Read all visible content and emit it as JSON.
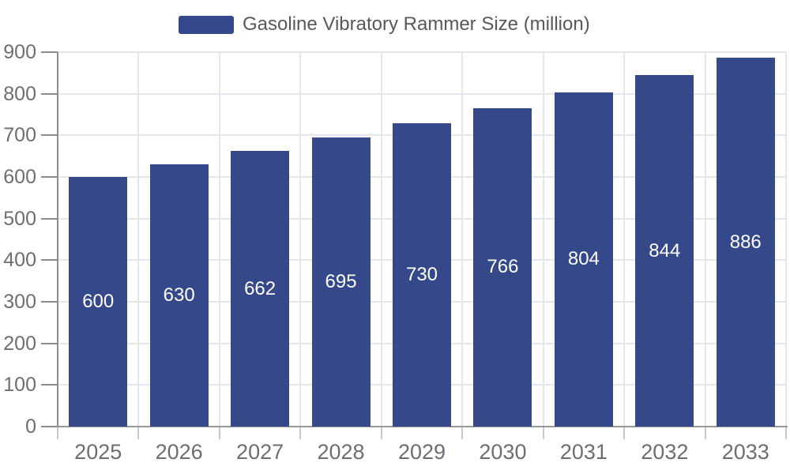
{
  "legend": {
    "label": "Gasoline Vibratory Rammer Size (million)",
    "swatch_color": "#35498a"
  },
  "colors": {
    "bar": "#35498a",
    "value_label": "#ffffff",
    "axis_label": "#6c6e73",
    "legend_text": "#56585c",
    "grid_line": "#e5e5ea",
    "axis_line": "#8b8c90",
    "x_axis_line": "#97989c",
    "x_tick": "#c6c8ce",
    "background": "#ffffff"
  },
  "chart_data": {
    "type": "bar",
    "title": "Gasoline Vibratory Rammer Size (million)",
    "categories": [
      "2025",
      "2026",
      "2027",
      "2028",
      "2029",
      "2030",
      "2031",
      "2032",
      "2033"
    ],
    "values": [
      600,
      630,
      662,
      695,
      730,
      766,
      804,
      844,
      886
    ],
    "series": [
      {
        "name": "Gasoline Vibratory Rammer Size (million)",
        "values": [
          600,
          630,
          662,
          695,
          730,
          766,
          804,
          844,
          886
        ]
      }
    ],
    "xlabel": "",
    "ylabel": "",
    "ylim": [
      0,
      900
    ],
    "ytick_step": 100,
    "ytick_labels": [
      "0",
      "100",
      "200",
      "300",
      "400",
      "500",
      "600",
      "700",
      "800",
      "900"
    ],
    "grid": true,
    "legend_position": "top",
    "value_labels_shown": true,
    "value_label_position": "center-of-bar"
  }
}
